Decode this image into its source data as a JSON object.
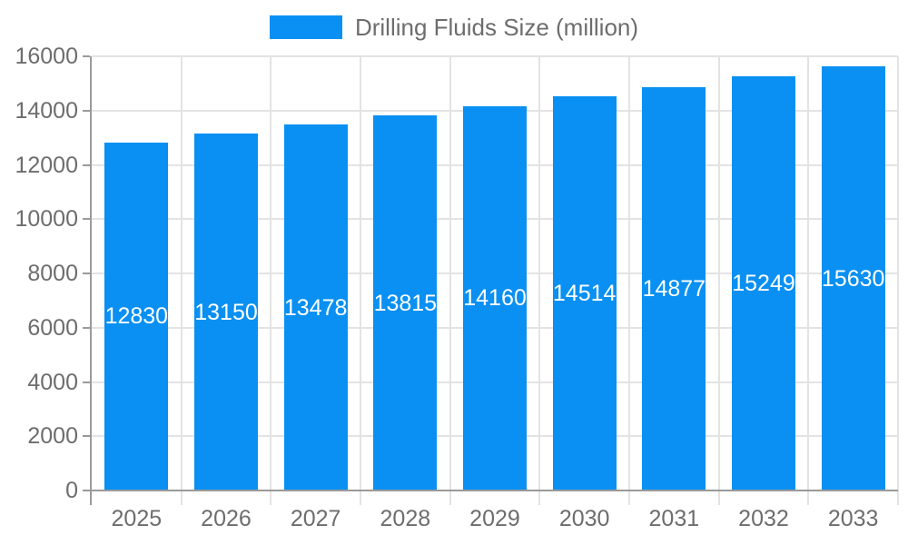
{
  "legend": {
    "label": "Drilling Fluids Size (million)"
  },
  "chart_data": {
    "type": "bar",
    "title": "Drilling Fluids Size (million)",
    "categories": [
      "2025",
      "2026",
      "2027",
      "2028",
      "2029",
      "2030",
      "2031",
      "2032",
      "2033"
    ],
    "series": [
      {
        "name": "Drilling Fluids Size (million)",
        "values": [
          12830,
          13150,
          13478,
          13815,
          14160,
          14514,
          14877,
          15249,
          15630
        ]
      }
    ],
    "xlabel": "",
    "ylabel": "",
    "ylim": [
      0,
      16000
    ],
    "ytick_step": 2000,
    "yticks": [
      0,
      2000,
      4000,
      6000,
      8000,
      10000,
      12000,
      14000,
      16000
    ],
    "grid": true,
    "legend_position": "top-center",
    "value_label_position": "inside-middle",
    "colors": {
      "bar": "#0990f2",
      "value_label": "#ffffff",
      "axis_line": "#9a9a9a",
      "gridline": "#e3e3e3",
      "text": "#6d6d6d",
      "background": "#ffffff"
    }
  }
}
